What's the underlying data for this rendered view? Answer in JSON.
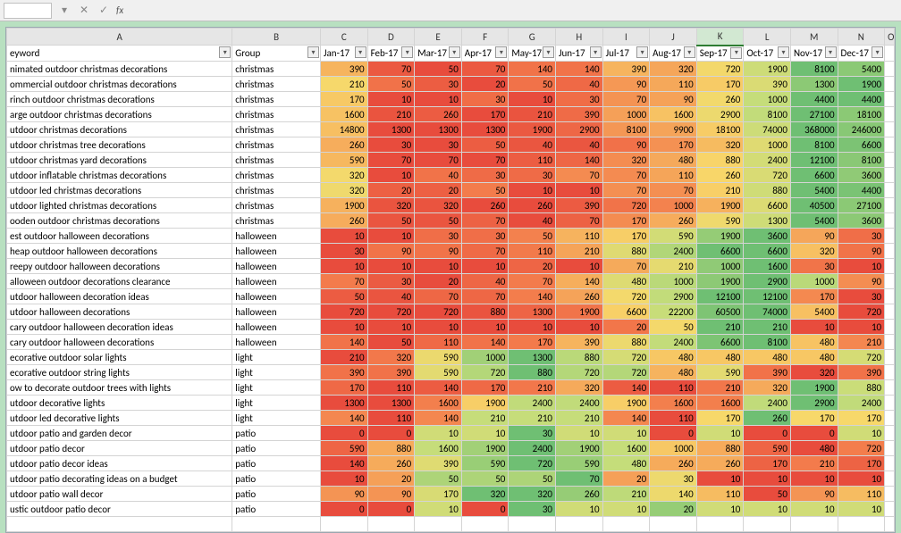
{
  "formula_bar": {
    "namebox": "",
    "fx_label": "fx"
  },
  "col_letters": [
    "A",
    "B",
    "C",
    "D",
    "E",
    "F",
    "G",
    "H",
    "I",
    "J",
    "K",
    "L",
    "M",
    "N",
    "O"
  ],
  "selected_col_index": 10,
  "headers": {
    "A": "eyword",
    "B": "Group"
  },
  "months": [
    "Jan-17",
    "Feb-17",
    "Mar-17",
    "Apr-17",
    "May-17",
    "Jun-17",
    "Jul-17",
    "Aug-17",
    "Sep-17",
    "Oct-17",
    "Nov-17",
    "Dec-17"
  ],
  "rows": [
    {
      "kw": "nimated outdoor christmas decorations",
      "grp": "christmas",
      "v": [
        390,
        70,
        50,
        70,
        140,
        140,
        390,
        320,
        720,
        1900,
        8100,
        5400
      ]
    },
    {
      "kw": "ommercial outdoor christmas decorations",
      "grp": "christmas",
      "v": [
        210,
        50,
        30,
        20,
        50,
        40,
        90,
        110,
        170,
        390,
        1300,
        1900
      ]
    },
    {
      "kw": "rinch outdoor christmas decorations",
      "grp": "christmas",
      "v": [
        170,
        10,
        10,
        30,
        10,
        30,
        70,
        90,
        260,
        1000,
        4400,
        4400
      ]
    },
    {
      "kw": "arge outdoor christmas decorations",
      "grp": "christmas",
      "v": [
        1600,
        210,
        260,
        170,
        210,
        390,
        1000,
        1600,
        2900,
        8100,
        27100,
        18100
      ]
    },
    {
      "kw": "utdoor christmas decorations",
      "grp": "christmas",
      "v": [
        14800,
        1300,
        1300,
        1300,
        1900,
        2900,
        8100,
        9900,
        18100,
        74000,
        368000,
        246000
      ]
    },
    {
      "kw": "utdoor christmas tree decorations",
      "grp": "christmas",
      "v": [
        260,
        30,
        30,
        50,
        40,
        40,
        90,
        170,
        320,
        1000,
        8100,
        6600
      ]
    },
    {
      "kw": "utdoor christmas yard decorations",
      "grp": "christmas",
      "v": [
        590,
        70,
        70,
        70,
        110,
        140,
        320,
        480,
        880,
        2400,
        12100,
        8100
      ]
    },
    {
      "kw": "utdoor inflatable christmas decorations",
      "grp": "christmas",
      "v": [
        320,
        10,
        40,
        30,
        30,
        70,
        70,
        110,
        260,
        720,
        6600,
        3600
      ]
    },
    {
      "kw": "utdoor led christmas decorations",
      "grp": "christmas",
      "v": [
        320,
        20,
        20,
        50,
        10,
        10,
        70,
        70,
        210,
        880,
        5400,
        4400
      ]
    },
    {
      "kw": "utdoor lighted christmas decorations",
      "grp": "christmas",
      "v": [
        1900,
        320,
        320,
        260,
        260,
        390,
        720,
        1000,
        1900,
        6600,
        40500,
        27100
      ]
    },
    {
      "kw": "ooden outdoor christmas decorations",
      "grp": "christmas",
      "v": [
        260,
        50,
        50,
        70,
        40,
        70,
        170,
        260,
        590,
        1300,
        5400,
        3600
      ]
    },
    {
      "kw": "est outdoor halloween decorations",
      "grp": "halloween",
      "v": [
        10,
        10,
        30,
        30,
        50,
        110,
        170,
        590,
        1900,
        3600,
        90,
        30
      ]
    },
    {
      "kw": "heap outdoor halloween decorations",
      "grp": "halloween",
      "v": [
        30,
        90,
        90,
        70,
        110,
        210,
        880,
        2400,
        6600,
        6600,
        320,
        90
      ]
    },
    {
      "kw": "reepy outdoor halloween decorations",
      "grp": "halloween",
      "v": [
        10,
        10,
        10,
        10,
        20,
        10,
        70,
        210,
        1000,
        1600,
        30,
        10
      ]
    },
    {
      "kw": "alloween outdoor decorations clearance",
      "grp": "halloween",
      "v": [
        70,
        30,
        20,
        40,
        70,
        140,
        480,
        1000,
        1900,
        2900,
        1000,
        90
      ]
    },
    {
      "kw": "utdoor halloween decoration ideas",
      "grp": "halloween",
      "v": [
        50,
        40,
        70,
        70,
        140,
        260,
        720,
        2900,
        12100,
        12100,
        170,
        30
      ]
    },
    {
      "kw": "utdoor halloween decorations",
      "grp": "halloween",
      "v": [
        720,
        720,
        720,
        880,
        1300,
        1900,
        6600,
        22200,
        60500,
        74000,
        5400,
        720
      ]
    },
    {
      "kw": "cary outdoor halloween decoration ideas",
      "grp": "halloween",
      "v": [
        10,
        10,
        10,
        10,
        10,
        10,
        20,
        50,
        210,
        210,
        10,
        10
      ]
    },
    {
      "kw": "cary outdoor halloween decorations",
      "grp": "halloween",
      "v": [
        140,
        50,
        110,
        140,
        170,
        390,
        880,
        2400,
        6600,
        8100,
        480,
        210
      ]
    },
    {
      "kw": "ecorative outdoor solar lights",
      "grp": "light",
      "v": [
        210,
        320,
        590,
        1000,
        1300,
        880,
        720,
        480,
        480,
        480,
        480,
        720
      ]
    },
    {
      "kw": "ecorative outdoor string lights",
      "grp": "light",
      "v": [
        390,
        390,
        590,
        720,
        880,
        720,
        720,
        480,
        590,
        390,
        320,
        390
      ]
    },
    {
      "kw": "ow to decorate outdoor trees with lights",
      "grp": "light",
      "v": [
        170,
        110,
        140,
        170,
        210,
        320,
        140,
        110,
        210,
        320,
        1900,
        880
      ]
    },
    {
      "kw": "utdoor decorative lights",
      "grp": "light",
      "v": [
        1300,
        1300,
        1600,
        1900,
        2400,
        2400,
        1900,
        1600,
        1600,
        2400,
        2900,
        2400
      ]
    },
    {
      "kw": "utdoor led decorative lights",
      "grp": "light",
      "v": [
        140,
        110,
        140,
        210,
        210,
        210,
        140,
        110,
        170,
        260,
        170,
        170
      ]
    },
    {
      "kw": "utdoor patio and garden decor",
      "grp": "patio",
      "v": [
        0,
        0,
        10,
        10,
        30,
        10,
        10,
        0,
        10,
        0,
        0,
        10
      ]
    },
    {
      "kw": "utdoor patio decor",
      "grp": "patio",
      "v": [
        590,
        880,
        1600,
        1900,
        2400,
        1900,
        1600,
        1000,
        880,
        590,
        480,
        720
      ]
    },
    {
      "kw": "utdoor patio decor ideas",
      "grp": "patio",
      "v": [
        140,
        260,
        390,
        590,
        720,
        590,
        480,
        260,
        260,
        170,
        210,
        170
      ]
    },
    {
      "kw": "utdoor patio decorating ideas on a budget",
      "grp": "patio",
      "v": [
        10,
        20,
        50,
        50,
        50,
        70,
        20,
        30,
        10,
        10,
        10,
        10
      ]
    },
    {
      "kw": "utdoor patio wall decor",
      "grp": "patio",
      "v": [
        90,
        90,
        170,
        320,
        320,
        260,
        210,
        140,
        110,
        50,
        90,
        110
      ]
    },
    {
      "kw": "ustic outdoor patio decor",
      "grp": "patio",
      "v": [
        0,
        0,
        10,
        0,
        30,
        10,
        10,
        20,
        10,
        10,
        10,
        10
      ]
    }
  ],
  "heat_palette": {
    "stops": [
      {
        "t": 0.0,
        "c": "#e84c3d"
      },
      {
        "t": 0.25,
        "c": "#f37c4c"
      },
      {
        "t": 0.5,
        "c": "#f8d86a"
      },
      {
        "t": 0.75,
        "c": "#c6dd7a"
      },
      {
        "t": 1.0,
        "c": "#6fbf73"
      }
    ]
  }
}
